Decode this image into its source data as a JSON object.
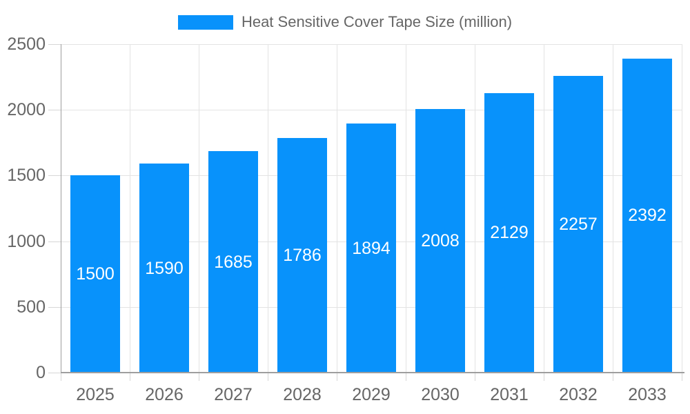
{
  "legend": {
    "label": "Heat Sensitive Cover Tape Size (million)"
  },
  "chart_data": {
    "type": "bar",
    "title": "Heat Sensitive Cover Tape Size (million)",
    "categories": [
      "2025",
      "2026",
      "2027",
      "2028",
      "2029",
      "2030",
      "2031",
      "2032",
      "2033"
    ],
    "values": [
      1500,
      1590,
      1685,
      1786,
      1894,
      2008,
      2129,
      2257,
      2392
    ],
    "series_name": "Heat Sensitive Cover Tape Size (million)",
    "xlabel": "",
    "ylabel": "",
    "ylim": [
      0,
      2500
    ],
    "yticks": [
      0,
      500,
      1000,
      1500,
      2000,
      2500
    ],
    "grid": true,
    "legend_position": "top",
    "bar_labels_visible": true,
    "colors": {
      "bar": "#0892fb",
      "bar_label": "#ffffff",
      "axis_text": "#666666",
      "axis_line": "#9e9e9e",
      "gridline": "#e3e3e3",
      "tick": "#d6d6d6",
      "background": "#ffffff"
    }
  }
}
